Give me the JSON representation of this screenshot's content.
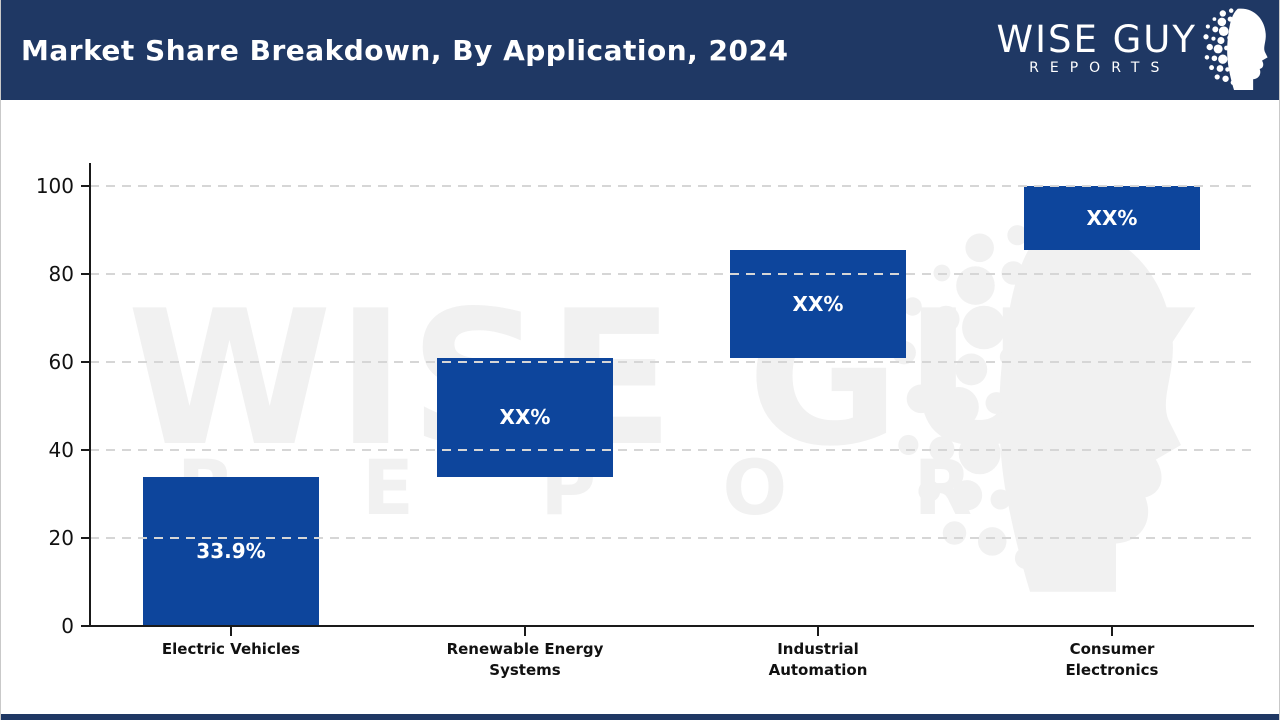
{
  "page": {
    "accent_color": "#1f3864",
    "bar_color": "#0d459c",
    "grid_color": "#d6d6d6",
    "watermark_color": "#f1f1f1"
  },
  "header": {
    "title": "Market Share Breakdown, By Application, 2024",
    "logo": {
      "line1": "WISE GUY",
      "line2": "REPORTS"
    }
  },
  "watermark": {
    "line1": "WISE GUY",
    "line2": "REPORTS"
  },
  "chart_data": {
    "type": "bar",
    "subtype": "waterfall",
    "title": "Market Share Breakdown, By Application, 2024",
    "categories": [
      "Electric Vehicles",
      "Renewable Energy Systems",
      "Industrial Automation",
      "Consumer Electronics"
    ],
    "category_lines": [
      [
        "Electric Vehicles"
      ],
      [
        "Renewable Energy",
        "Systems"
      ],
      [
        "Industrial",
        "Automation"
      ],
      [
        "Consumer",
        "Electronics"
      ]
    ],
    "segments": [
      {
        "category": "Electric Vehicles",
        "start": 0,
        "end": 33.9,
        "label": "33.9%"
      },
      {
        "category": "Renewable Energy Systems",
        "start": 33.9,
        "end": 61,
        "label": "XX%"
      },
      {
        "category": "Industrial Automation",
        "start": 61,
        "end": 85.5,
        "label": "XX%"
      },
      {
        "category": "Consumer Electronics",
        "start": 85.5,
        "end": 100,
        "label": "XX%"
      }
    ],
    "yticks": [
      0,
      20,
      40,
      60,
      80,
      100
    ],
    "ylim": [
      0,
      105
    ],
    "xlabel": "",
    "ylabel": "",
    "legend": null,
    "grid": "dashed-horizontal",
    "bar_color": "#0d459c",
    "bar_label_color": "#ffffff"
  }
}
